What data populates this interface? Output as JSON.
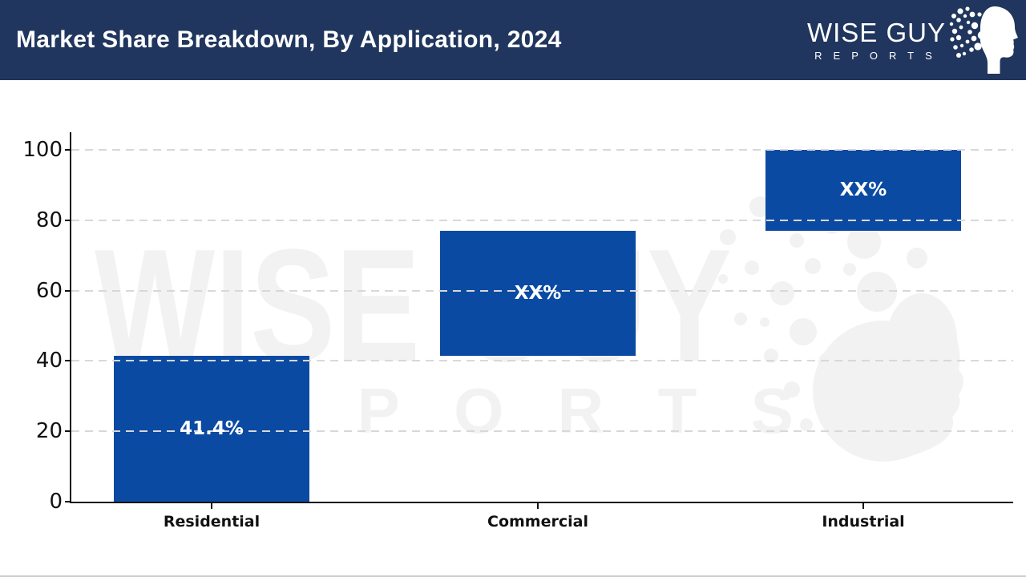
{
  "header": {
    "title": "Market Share Breakdown, By Application, 2024",
    "logo": {
      "line1": "WISE GUY",
      "line2": "REPORTS"
    }
  },
  "watermark": {
    "line1": "WISE GUY",
    "line2": "REPORTS"
  },
  "colors": {
    "header_bg": "#20365e",
    "bar_blue": "#0b4aa2",
    "grid": "#d8d8d8",
    "axis": "#111111",
    "watermark": "#f2f2f3",
    "bar_label_text": "#ffffff",
    "tick_text": "#111111"
  },
  "chart_data": {
    "type": "bar",
    "subtype": "waterfall-stacked-segments",
    "title": "Market Share Breakdown, By Application, 2024",
    "categories": [
      "Residential",
      "Commercial",
      "Industrial"
    ],
    "segments": [
      {
        "category": "Residential",
        "start": 0,
        "end": 41.4,
        "label": "41.4%"
      },
      {
        "category": "Commercial",
        "start": 41.4,
        "end": 77,
        "label": "XX%"
      },
      {
        "category": "Industrial",
        "start": 77,
        "end": 100,
        "label": "XX%"
      }
    ],
    "xlabel": "",
    "ylabel": "",
    "ylim": [
      0,
      100
    ],
    "yticks": [
      0,
      20,
      40,
      60,
      80,
      100
    ],
    "grid": "horizontal-dashed",
    "legend": "none"
  }
}
